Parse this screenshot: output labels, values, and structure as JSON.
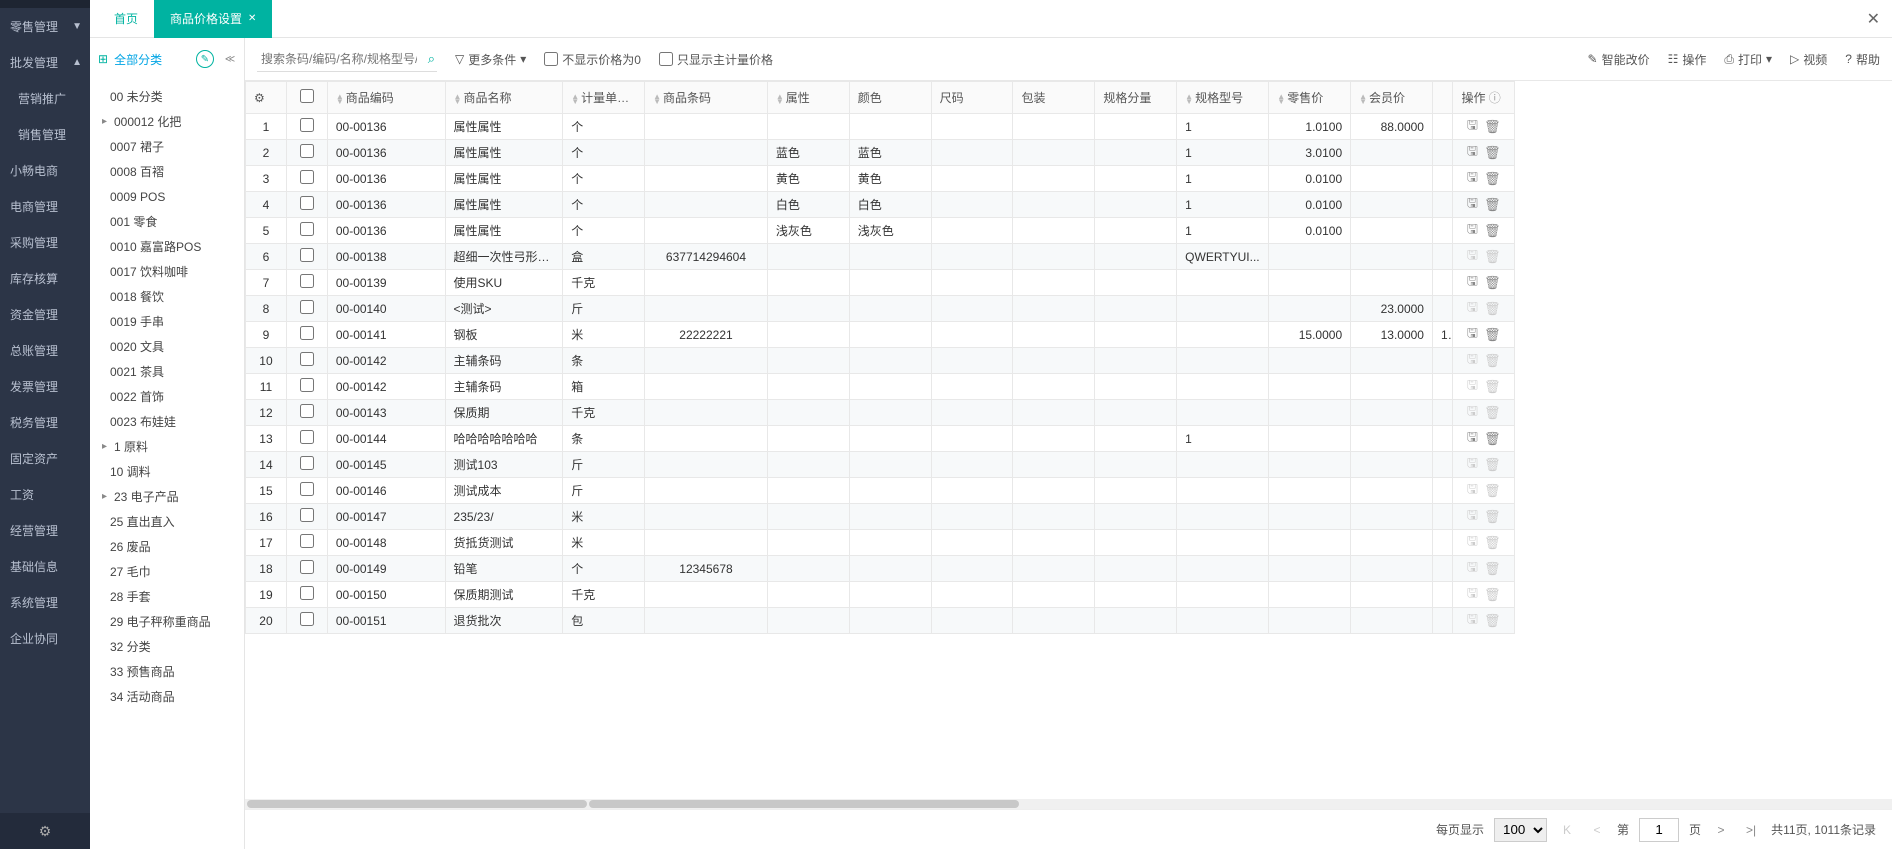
{
  "sidebar": {
    "items": [
      {
        "label": "零售管理",
        "caret": "▼"
      },
      {
        "label": "批发管理",
        "caret": "▲"
      }
    ],
    "subitems": [
      "营销推广",
      "销售管理"
    ],
    "items2": [
      "小畅电商",
      "电商管理",
      "采购管理",
      "库存核算",
      "资金管理",
      "总账管理",
      "发票管理",
      "税务管理",
      "固定资产",
      "工资",
      "经营管理",
      "基础信息",
      "系统管理",
      "企业协同"
    ]
  },
  "tabs": {
    "home": "首页",
    "active": "商品价格设置"
  },
  "category": {
    "header": "全部分类",
    "items": [
      {
        "label": "00 未分类"
      },
      {
        "label": "000012 化把",
        "child": true
      },
      {
        "label": "0007 裙子"
      },
      {
        "label": "0008 百褶"
      },
      {
        "label": "0009 POS"
      },
      {
        "label": "001 零食"
      },
      {
        "label": "0010 嘉富路POS"
      },
      {
        "label": "0017 饮料咖啡"
      },
      {
        "label": "0018 餐饮"
      },
      {
        "label": "0019 手串"
      },
      {
        "label": "0020 文具"
      },
      {
        "label": "0021 茶具"
      },
      {
        "label": "0022 首饰"
      },
      {
        "label": "0023 布娃娃"
      },
      {
        "label": "1 原料",
        "child": true
      },
      {
        "label": "10 调料"
      },
      {
        "label": "23 电子产品",
        "child": true
      },
      {
        "label": "25 直出直入"
      },
      {
        "label": "26 废品"
      },
      {
        "label": "27 毛巾"
      },
      {
        "label": "28 手套"
      },
      {
        "label": "29 电子秤称重商品"
      },
      {
        "label": "32 分类"
      },
      {
        "label": "33 预售商品"
      },
      {
        "label": "34 活动商品"
      }
    ]
  },
  "toolbar": {
    "search_placeholder": "搜索条码/编码/名称/规格型号/别名",
    "more_filter": "更多条件",
    "hide_zero": "不显示价格为0",
    "main_unit_only": "只显示主计量价格",
    "smart_edit": "智能改价",
    "operate": "操作",
    "print": "打印",
    "video": "视频",
    "help": "帮助"
  },
  "columns": {
    "code": "商品编码",
    "name": "商品名称",
    "unit": "计量单位...",
    "barcode": "商品条码",
    "attr": "属性",
    "color": "颜色",
    "size": "尺码",
    "package": "包装",
    "specqty": "规格分量",
    "spectype": "规格型号",
    "retail": "零售价",
    "member": "会员价",
    "ops": "操作"
  },
  "rows": [
    {
      "idx": "1",
      "code": "00-00136",
      "name": "属性属性",
      "unit": "个",
      "barcode": "",
      "attr": "",
      "color": "",
      "spectype": "1",
      "retail": "1.0100",
      "member": "88.0000",
      "ops": "on"
    },
    {
      "idx": "2",
      "code": "00-00136",
      "name": "属性属性",
      "unit": "个",
      "barcode": "",
      "attr": "蓝色",
      "color": "蓝色",
      "spectype": "1",
      "retail": "3.0100",
      "member": "",
      "ops": "on"
    },
    {
      "idx": "3",
      "code": "00-00136",
      "name": "属性属性",
      "unit": "个",
      "barcode": "",
      "attr": "黄色",
      "color": "黄色",
      "spectype": "1",
      "retail": "0.0100",
      "member": "",
      "ops": "on"
    },
    {
      "idx": "4",
      "code": "00-00136",
      "name": "属性属性",
      "unit": "个",
      "barcode": "",
      "attr": "白色",
      "color": "白色",
      "spectype": "1",
      "retail": "0.0100",
      "member": "",
      "ops": "on"
    },
    {
      "idx": "5",
      "code": "00-00136",
      "name": "属性属性",
      "unit": "个",
      "barcode": "",
      "attr": "浅灰色",
      "color": "浅灰色",
      "spectype": "1",
      "retail": "0.0100",
      "member": "",
      "ops": "on"
    },
    {
      "idx": "6",
      "code": "00-00138",
      "name": "超细一次性弓形牙线",
      "unit": "盒",
      "barcode": "637714294604",
      "attr": "",
      "color": "",
      "spectype": "QWERTYUI...",
      "retail": "",
      "member": "",
      "ops": "off"
    },
    {
      "idx": "7",
      "code": "00-00139",
      "name": "使用SKU",
      "unit": "千克",
      "barcode": "",
      "attr": "",
      "color": "",
      "spectype": "",
      "retail": "",
      "member": "",
      "ops": "on"
    },
    {
      "idx": "8",
      "code": "00-00140",
      "name": "<测试>",
      "unit": "斤",
      "barcode": "",
      "attr": "",
      "color": "",
      "spectype": "",
      "retail": "",
      "member": "23.0000",
      "ops": "off"
    },
    {
      "idx": "9",
      "code": "00-00141",
      "name": "钢板",
      "unit": "米",
      "barcode": "22222221",
      "attr": "",
      "color": "",
      "spectype": "",
      "retail": "15.0000",
      "member": "13.0000",
      "extra": "1",
      "ops": "on"
    },
    {
      "idx": "10",
      "code": "00-00142",
      "name": "主辅条码",
      "unit": "条",
      "barcode": "",
      "attr": "",
      "color": "",
      "spectype": "",
      "retail": "",
      "member": "",
      "ops": "off"
    },
    {
      "idx": "11",
      "code": "00-00142",
      "name": "主辅条码",
      "unit": "箱",
      "barcode": "",
      "attr": "",
      "color": "",
      "spectype": "",
      "retail": "",
      "member": "",
      "ops": "off"
    },
    {
      "idx": "12",
      "code": "00-00143",
      "name": "保质期",
      "unit": "千克",
      "barcode": "",
      "attr": "",
      "color": "",
      "spectype": "",
      "retail": "",
      "member": "",
      "ops": "off"
    },
    {
      "idx": "13",
      "code": "00-00144",
      "name": "哈哈哈哈哈哈哈",
      "unit": "条",
      "barcode": "",
      "attr": "",
      "color": "",
      "spectype": "1",
      "retail": "",
      "member": "",
      "ops": "on"
    },
    {
      "idx": "14",
      "code": "00-00145",
      "name": "测试103",
      "unit": "斤",
      "barcode": "",
      "attr": "",
      "color": "",
      "spectype": "",
      "retail": "",
      "member": "",
      "ops": "off"
    },
    {
      "idx": "15",
      "code": "00-00146",
      "name": "测试成本",
      "unit": "斤",
      "barcode": "",
      "attr": "",
      "color": "",
      "spectype": "",
      "retail": "",
      "member": "",
      "ops": "off"
    },
    {
      "idx": "16",
      "code": "00-00147",
      "name": "235/23/",
      "unit": "米",
      "barcode": "",
      "attr": "",
      "color": "",
      "spectype": "",
      "retail": "",
      "member": "",
      "ops": "off"
    },
    {
      "idx": "17",
      "code": "00-00148",
      "name": "货抵货测试",
      "unit": "米",
      "barcode": "",
      "attr": "",
      "color": "",
      "spectype": "",
      "retail": "",
      "member": "",
      "ops": "off"
    },
    {
      "idx": "18",
      "code": "00-00149",
      "name": "铅笔",
      "unit": "个",
      "barcode": "12345678",
      "attr": "",
      "color": "",
      "spectype": "",
      "retail": "",
      "member": "",
      "ops": "off"
    },
    {
      "idx": "19",
      "code": "00-00150",
      "name": "保质期测试",
      "unit": "千克",
      "barcode": "",
      "attr": "",
      "color": "",
      "spectype": "",
      "retail": "",
      "member": "",
      "ops": "off"
    },
    {
      "idx": "20",
      "code": "00-00151",
      "name": "退货批次",
      "unit": "包",
      "barcode": "",
      "attr": "",
      "color": "",
      "spectype": "",
      "retail": "",
      "member": "",
      "ops": "off"
    }
  ],
  "pager": {
    "per_page_label": "每页显示",
    "per_page": "100",
    "page_label_pre": "第",
    "page": "1",
    "page_label_post": "页",
    "summary": "共11页, 1011条记录"
  }
}
